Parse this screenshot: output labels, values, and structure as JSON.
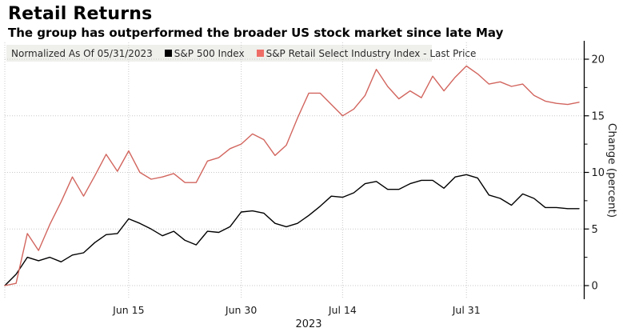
{
  "header": {
    "title": "Retail Returns",
    "subtitle": "The group has outperformed the broader US stock market since late May"
  },
  "legend": {
    "note": "Normalized As Of 05/31/2023",
    "items": [
      {
        "label": "S&P 500 Index",
        "color": "#000000"
      },
      {
        "label": "S&P Retail Select Industry Index - Last Price",
        "color": "#ee6e67"
      }
    ]
  },
  "chart_data": {
    "type": "line",
    "title": "Retail Returns",
    "subtitle": "The group has outperformed the broader US stock market since late May",
    "xlabel": "2023",
    "ylabel": "Change (percent)",
    "grid": true,
    "legend_position": "top",
    "ylim": [
      -1.1,
      21.4
    ],
    "y_ticks": [
      0,
      5,
      10,
      15,
      20
    ],
    "y_minor_ticks": [
      2.5,
      7.5,
      12.5,
      17.5
    ],
    "x_ticks": [
      {
        "label": "Jun 15",
        "index": 11
      },
      {
        "label": "Jun 30",
        "index": 21
      },
      {
        "label": "Jul 14",
        "index": 30
      },
      {
        "label": "Jul 31",
        "index": 41
      }
    ],
    "x": [
      "May 31",
      "Jun 1",
      "Jun 2",
      "Jun 5",
      "Jun 6",
      "Jun 7",
      "Jun 8",
      "Jun 9",
      "Jun 12",
      "Jun 13",
      "Jun 14",
      "Jun 15",
      "Jun 16",
      "Jun 20",
      "Jun 21",
      "Jun 22",
      "Jun 23",
      "Jun 26",
      "Jun 27",
      "Jun 28",
      "Jun 29",
      "Jun 30",
      "Jul 3",
      "Jul 5",
      "Jul 6",
      "Jul 7",
      "Jul 10",
      "Jul 11",
      "Jul 12",
      "Jul 13",
      "Jul 14",
      "Jul 17",
      "Jul 18",
      "Jul 19",
      "Jul 20",
      "Jul 21",
      "Jul 24",
      "Jul 25",
      "Jul 26",
      "Jul 27",
      "Jul 28",
      "Jul 31",
      "Aug 1",
      "Aug 2",
      "Aug 3",
      "Aug 4",
      "Aug 7",
      "Aug 8",
      "Aug 9",
      "Aug 10",
      "Aug 11",
      "Aug 14"
    ],
    "series": [
      {
        "name": "S&P 500 Index",
        "color": "#000000",
        "values": [
          0.0,
          1.0,
          2.5,
          2.2,
          2.5,
          2.1,
          2.7,
          2.9,
          3.8,
          4.5,
          4.6,
          5.9,
          5.5,
          5.0,
          4.4,
          4.8,
          4.0,
          3.6,
          4.8,
          4.7,
          5.2,
          6.5,
          6.6,
          6.4,
          5.5,
          5.2,
          5.5,
          6.2,
          7.0,
          7.9,
          7.8,
          8.2,
          9.0,
          9.2,
          8.5,
          8.5,
          9.0,
          9.3,
          9.3,
          8.6,
          9.6,
          9.8,
          9.5,
          8.0,
          7.7,
          7.1,
          8.1,
          7.7,
          6.9,
          6.9,
          6.8,
          6.8
        ]
      },
      {
        "name": "S&P Retail Select Industry Index - Last Price",
        "color": "#d2655e",
        "values": [
          0.0,
          0.2,
          4.6,
          3.1,
          5.4,
          7.4,
          9.6,
          7.9,
          9.7,
          11.6,
          10.1,
          11.9,
          10.0,
          9.4,
          9.6,
          9.9,
          9.1,
          9.1,
          11.0,
          11.3,
          12.1,
          12.5,
          13.4,
          12.9,
          11.5,
          12.4,
          14.8,
          17.0,
          17.0,
          16.0,
          15.0,
          15.6,
          16.8,
          19.1,
          17.6,
          16.5,
          17.2,
          16.6,
          18.5,
          17.2,
          18.4,
          19.4,
          18.7,
          17.8,
          18.0,
          17.6,
          17.8,
          16.8,
          16.3,
          16.1,
          16.0,
          16.2
        ]
      }
    ]
  }
}
